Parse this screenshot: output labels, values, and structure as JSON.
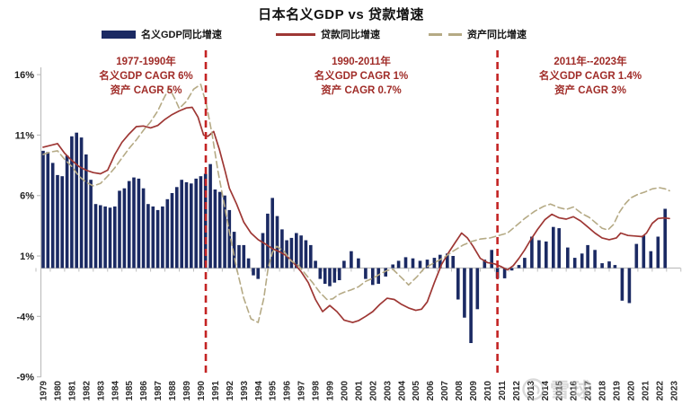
{
  "title": "日本名义GDP vs 贷款增速",
  "legend": {
    "gdp_label": "名义GDP同比增速",
    "loan_label": "贷款同比增速",
    "asset_label": "资产同比增速"
  },
  "annotations": [
    {
      "line1": "1977-1990年",
      "line2": "名义GDP CAGR 6%",
      "line3": "资产 CAGR 5%"
    },
    {
      "line1": "1990-2011年",
      "line2": "名义GDP CAGR 1%",
      "line3": "资产 CAGR 0.7%"
    },
    {
      "line1": "2011年--2023年",
      "line2": "名义GDP CAGR 1.4%",
      "line3": "资产 CAGR 3%"
    }
  ],
  "watermark": {
    "brand": "雪球"
  },
  "colors": {
    "bar": "#1b2a63",
    "loan_line": "#9e3734",
    "asset_line": "#b5aa85",
    "vline": "#c42323",
    "axis": "#bfbfbf",
    "annotation": "#a02c28"
  },
  "chart_data": {
    "type": "bar",
    "title": "日本名义GDP vs 贷款增速",
    "xlabel": "",
    "ylabel": "",
    "grid": false,
    "legend_position": "top",
    "ylim": [
      -9,
      16
    ],
    "xlim": [
      1978.6,
      2023.5
    ],
    "y_ticks": [
      16,
      11,
      6,
      1,
      -4,
      -9
    ],
    "y_tick_labels": [
      "16%",
      "11%",
      "6%",
      "1%",
      "-4%",
      "-9%"
    ],
    "x_labels": [
      "1979",
      "1980",
      "1981",
      "1982",
      "1983",
      "1984",
      "1985",
      "1986",
      "1987",
      "1988",
      "1989",
      "1990",
      "1991",
      "1992",
      "1993",
      "1994",
      "1995",
      "1996",
      "1997",
      "1998",
      "1999",
      "2000",
      "2001",
      "2002",
      "2003",
      "2004",
      "2005",
      "2006",
      "2007",
      "2008",
      "2009",
      "2010",
      "2011",
      "2012",
      "2013",
      "2014",
      "2015",
      "2016",
      "2017",
      "2018",
      "2019",
      "2020",
      "2021",
      "2022",
      "2023"
    ],
    "vlines": {
      "years": [
        1990.35,
        2010.7
      ],
      "style": "dashed-red"
    },
    "series": [
      {
        "name": "名义GDP同比增速",
        "type": "bar",
        "color": "#1b2a63",
        "t": [
          1979,
          1979.33,
          1979.67,
          1980,
          1980.33,
          1980.67,
          1981,
          1981.33,
          1981.67,
          1982,
          1982.33,
          1982.67,
          1983,
          1983.33,
          1983.67,
          1984,
          1984.33,
          1984.67,
          1985,
          1985.33,
          1985.67,
          1986,
          1986.33,
          1986.67,
          1987,
          1987.33,
          1987.67,
          1988,
          1988.33,
          1988.67,
          1989,
          1989.33,
          1989.67,
          1990,
          1990.33,
          1990.67,
          1991,
          1991.33,
          1991.67,
          1992,
          1992.33,
          1992.67,
          1993,
          1993.33,
          1993.67,
          1994,
          1994.33,
          1994.67,
          1995,
          1995.33,
          1995.67,
          1996,
          1996.33,
          1996.67,
          1997,
          1997.33,
          1997.67,
          1998,
          1998.33,
          1998.67,
          1999,
          1999.33,
          1999.67,
          2000,
          2000.5,
          2001,
          2001.5,
          2002,
          2002.4,
          2002.9,
          2003.4,
          2003.8,
          2004.3,
          2004.8,
          2005.3,
          2005.8,
          2006.3,
          2006.7,
          2007.2,
          2007.6,
          2007.95,
          2008.4,
          2008.85,
          2009.3,
          2009.8,
          2010.3,
          2010.7,
          2011.2,
          2011.7,
          2012.2,
          2012.6,
          2013.1,
          2013.6,
          2014.1,
          2014.6,
          2015,
          2015.6,
          2016.1,
          2016.6,
          2017,
          2017.5,
          2018,
          2018.5,
          2018.9,
          2019.4,
          2019.9,
          2020.4,
          2020.9,
          2021.4,
          2021.9,
          2022.4
        ],
        "v": [
          9.7,
          9.6,
          8.7,
          7.7,
          7.6,
          9.3,
          10.9,
          11.2,
          10.8,
          9.4,
          7.3,
          5.3,
          5.2,
          5.1,
          5.0,
          5.1,
          6.4,
          6.6,
          7.2,
          7.5,
          7.4,
          6.6,
          5.3,
          5.1,
          4.8,
          5.1,
          5.7,
          6.2,
          6.7,
          7.3,
          7.1,
          7.0,
          7.4,
          7.6,
          7.8,
          8.6,
          6.5,
          6.3,
          6.0,
          4.8,
          3.0,
          1.9,
          1.9,
          0.8,
          -0.6,
          -0.9,
          2.9,
          4.5,
          5.8,
          4.3,
          3.2,
          2.3,
          2.5,
          2.9,
          2.7,
          2.3,
          1.9,
          0.6,
          -0.9,
          -1.3,
          -1.5,
          -1.2,
          -1.0,
          0.6,
          1.4,
          0.8,
          -0.9,
          -1.4,
          -1.3,
          -0.7,
          0.3,
          0.6,
          0.9,
          0.8,
          0.6,
          0.7,
          0.85,
          1.1,
          1.2,
          1.0,
          -2.6,
          -4.1,
          -6.2,
          -3.4,
          0.7,
          1.5,
          -0.85,
          -0.85,
          -0.2,
          0.25,
          0.85,
          2.6,
          2.3,
          2.2,
          3.4,
          3.3,
          1.7,
          0.85,
          1.2,
          1.9,
          1.5,
          0.4,
          0.55,
          0.25,
          -2.7,
          -2.9,
          2.0,
          2.7,
          1.4,
          2.6,
          4.9
        ]
      },
      {
        "name": "贷款同比增速",
        "type": "line",
        "color": "#9e3734",
        "width": 1.7,
        "t": [
          1979,
          1979.5,
          1980,
          1980.5,
          1981,
          1981.5,
          1982,
          1982.5,
          1983,
          1983.5,
          1984,
          1984.5,
          1985,
          1985.5,
          1986,
          1986.5,
          1987,
          1987.5,
          1988,
          1988.5,
          1989,
          1989.4,
          1989.8,
          1990.2,
          1990.5,
          1990.9,
          1991.3,
          1991.7,
          1992,
          1992.5,
          1993,
          1993.5,
          1994,
          1994.5,
          1995,
          1995.5,
          1996,
          1996.5,
          1997,
          1997.5,
          1998,
          1998.5,
          1999,
          1999.5,
          2000,
          2000.6,
          2001,
          2001.5,
          2002,
          2002.5,
          2003,
          2003.5,
          2004,
          2004.5,
          2005,
          2005.4,
          2005.8,
          2006.3,
          2006.8,
          2007.3,
          2007.8,
          2008.2,
          2008.6,
          2009,
          2009.5,
          2010,
          2010.5,
          2011,
          2011.4,
          2011.8,
          2012.2,
          2012.6,
          2013,
          2013.5,
          2014,
          2014.5,
          2015,
          2015.5,
          2016,
          2016.5,
          2017,
          2017.5,
          2018,
          2018.5,
          2019,
          2019.3,
          2019.8,
          2020.3,
          2020.8,
          2021.1,
          2021.5,
          2021.9,
          2022.3,
          2022.7
        ],
        "v": [
          10.0,
          10.15,
          10.3,
          9.5,
          8.9,
          8.4,
          8.1,
          7.9,
          7.8,
          8.1,
          9.4,
          10.4,
          11.1,
          11.7,
          11.75,
          11.6,
          11.8,
          12.3,
          12.7,
          13.0,
          13.25,
          13.3,
          12.5,
          11.0,
          10.9,
          11.3,
          9.8,
          8.0,
          6.6,
          5.3,
          3.8,
          2.9,
          2.35,
          2.0,
          1.6,
          1.35,
          1.0,
          0.4,
          -0.3,
          -1.2,
          -2.6,
          -3.6,
          -3.1,
          -3.6,
          -4.3,
          -4.5,
          -4.35,
          -4.0,
          -3.6,
          -3.0,
          -2.5,
          -2.6,
          -3.0,
          -3.3,
          -3.5,
          -3.4,
          -2.8,
          -1.2,
          0.3,
          1.3,
          2.2,
          2.9,
          2.5,
          1.8,
          0.8,
          0.45,
          0.35,
          0.1,
          -0.15,
          0.2,
          0.8,
          1.5,
          2.3,
          3.2,
          4.0,
          4.45,
          4.15,
          4.05,
          4.25,
          3.9,
          3.4,
          2.9,
          2.5,
          2.35,
          2.5,
          2.9,
          2.7,
          2.65,
          2.6,
          2.9,
          3.7,
          4.1,
          4.15,
          4.1
        ]
      },
      {
        "name": "资产同比增速",
        "type": "line",
        "color": "#b5aa85",
        "width": 1.6,
        "dash": "7 4",
        "t": [
          1979,
          1979.5,
          1980,
          1980.5,
          1981,
          1981.5,
          1982,
          1982.5,
          1983,
          1983.5,
          1984,
          1984.5,
          1985,
          1985.5,
          1986,
          1986.5,
          1987,
          1987.4,
          1987.8,
          1988.2,
          1988.5,
          1989,
          1989.5,
          1990,
          1990.4,
          1990.8,
          1991.2,
          1991.6,
          1992,
          1992.5,
          1993,
          1993.5,
          1994,
          1994.4,
          1994.7,
          1995,
          1995.3,
          1995.8,
          1996.3,
          1996.8,
          1997.3,
          1997.8,
          1998.3,
          1998.8,
          1999.2,
          1999.6,
          2000,
          2000.5,
          2001,
          2001.5,
          2002,
          2002.5,
          2003,
          2003.4,
          2004.1,
          2004.5,
          2005.1,
          2005.6,
          2006.4,
          2007,
          2007.6,
          2008.3,
          2008.9,
          2009.5,
          2010.2,
          2010.8,
          2011.4,
          2012,
          2012.6,
          2013.3,
          2013.9,
          2014.4,
          2015,
          2015.5,
          2016,
          2016.6,
          2017.1,
          2017.6,
          2018,
          2018.4,
          2018.8,
          2019.2,
          2019.6,
          2020,
          2020.5,
          2021,
          2021.5,
          2022,
          2022.4,
          2022.7
        ],
        "v": [
          9.4,
          9.6,
          9.7,
          9.0,
          8.4,
          7.6,
          7.1,
          6.8,
          7.0,
          7.6,
          8.3,
          9.1,
          9.9,
          10.6,
          11.4,
          12.1,
          13.0,
          14.0,
          14.9,
          14.0,
          13.2,
          13.8,
          14.8,
          15.2,
          13.5,
          11.0,
          8.0,
          5.5,
          3.0,
          0.0,
          -2.5,
          -4.2,
          -4.5,
          -2.5,
          0.0,
          1.3,
          1.8,
          1.4,
          0.6,
          0.25,
          -0.5,
          -1.2,
          -2.0,
          -2.6,
          -2.55,
          -2.2,
          -2.0,
          -1.8,
          -1.55,
          -1.1,
          -0.85,
          -0.5,
          -0.2,
          -0.1,
          -0.9,
          -1.4,
          -0.7,
          0.0,
          0.5,
          0.9,
          1.4,
          1.9,
          2.2,
          2.4,
          2.5,
          2.7,
          2.9,
          3.5,
          4.1,
          4.7,
          5.1,
          5.3,
          5.0,
          4.85,
          5.05,
          4.5,
          4.2,
          3.7,
          3.3,
          3.15,
          3.6,
          4.6,
          5.3,
          5.8,
          6.1,
          6.3,
          6.55,
          6.65,
          6.55,
          6.4
        ]
      }
    ]
  }
}
